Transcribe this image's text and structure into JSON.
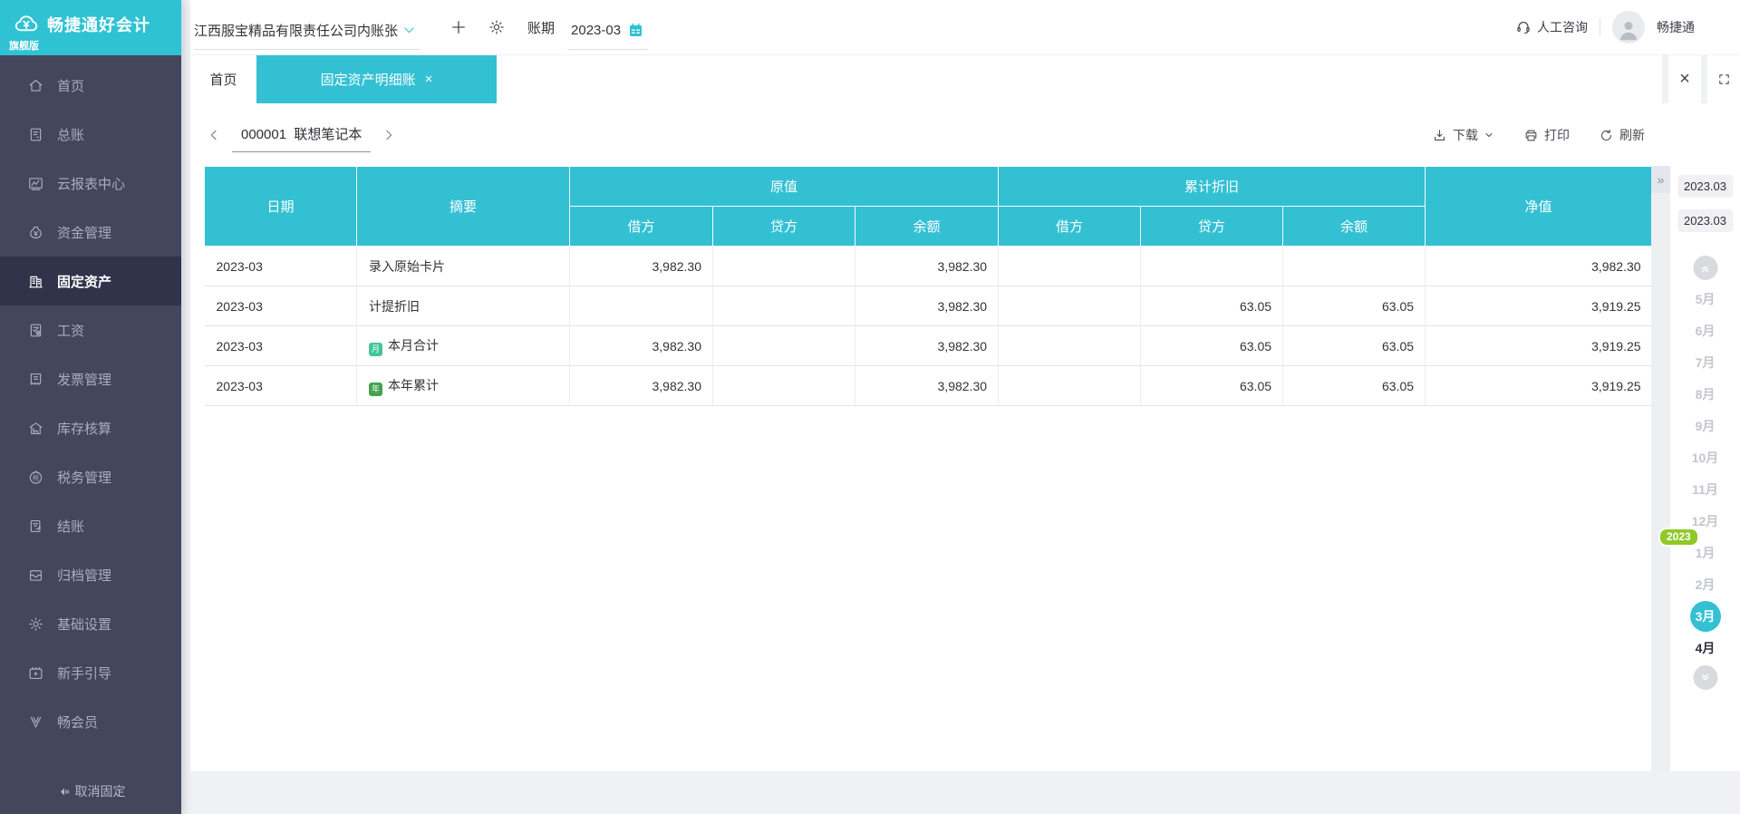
{
  "app": {
    "logo_title": "畅捷通好会计",
    "logo_badge": "旗舰版"
  },
  "topbar": {
    "company": "江西服宝精品有限责任公司内账张",
    "period_label": "账期",
    "period_value": "2023-03",
    "support": "人工咨询",
    "username": "畅捷通"
  },
  "tabs": {
    "home": "首页",
    "active": "固定资产明细账",
    "close_glyph": "×",
    "close_all_glyph": "×"
  },
  "toolbar": {
    "asset_no": "000001",
    "asset_name": "联想笔记本",
    "download": "下载",
    "print": "打印",
    "refresh": "刷新"
  },
  "table": {
    "headers": {
      "date": "日期",
      "summary": "摘要",
      "original_value": "原值",
      "accumulated_depreciation": "累计折旧",
      "net_value": "净值",
      "debit": "借方",
      "credit": "贷方",
      "balance": "余额"
    },
    "rows": [
      {
        "date": "2023-03",
        "summary": "录入原始卡片",
        "badge": "",
        "ov_debit": "3,982.30",
        "ov_credit": "",
        "ov_balance": "3,982.30",
        "dep_debit": "",
        "dep_credit": "",
        "dep_balance": "",
        "net": "3,982.30"
      },
      {
        "date": "2023-03",
        "summary": "计提折旧",
        "badge": "",
        "ov_debit": "",
        "ov_credit": "",
        "ov_balance": "3,982.30",
        "dep_debit": "",
        "dep_credit": "63.05",
        "dep_balance": "63.05",
        "net": "3,919.25"
      },
      {
        "date": "2023-03",
        "summary": "本月合计",
        "badge": "月",
        "ov_debit": "3,982.30",
        "ov_credit": "",
        "ov_balance": "3,982.30",
        "dep_debit": "",
        "dep_credit": "63.05",
        "dep_balance": "63.05",
        "net": "3,919.25"
      },
      {
        "date": "2023-03",
        "summary": "本年累计",
        "badge": "年",
        "ov_debit": "3,982.30",
        "ov_credit": "",
        "ov_balance": "3,982.30",
        "dep_debit": "",
        "dep_credit": "63.05",
        "dep_balance": "63.05",
        "net": "3,919.25"
      }
    ]
  },
  "sidebar": {
    "items": [
      {
        "label": "首页",
        "icon": "home"
      },
      {
        "label": "总账",
        "icon": "ledger"
      },
      {
        "label": "云报表中心",
        "icon": "cloud-report"
      },
      {
        "label": "资金管理",
        "icon": "funds"
      },
      {
        "label": "固定资产",
        "icon": "fixed-assets",
        "active": true
      },
      {
        "label": "工资",
        "icon": "salary"
      },
      {
        "label": "发票管理",
        "icon": "invoice"
      },
      {
        "label": "库存核算",
        "icon": "inventory"
      },
      {
        "label": "税务管理",
        "icon": "tax"
      },
      {
        "label": "结账",
        "icon": "closing"
      },
      {
        "label": "归档管理",
        "icon": "archive"
      },
      {
        "label": "基础设置",
        "icon": "settings"
      },
      {
        "label": "新手引导",
        "icon": "guide"
      },
      {
        "label": "畅会员",
        "icon": "member"
      }
    ],
    "unpin": "取消固定"
  },
  "period_panel": {
    "collapse_glyph": "»",
    "current_period": "2023.03",
    "selected_period": "2023.03",
    "year_badge": "2023",
    "months": [
      {
        "label": "5月",
        "state": "disabled"
      },
      {
        "label": "6月",
        "state": "disabled"
      },
      {
        "label": "7月",
        "state": "disabled"
      },
      {
        "label": "8月",
        "state": "disabled"
      },
      {
        "label": "9月",
        "state": "disabled"
      },
      {
        "label": "10月",
        "state": "disabled"
      },
      {
        "label": "11月",
        "state": "disabled"
      },
      {
        "label": "12月",
        "state": "disabled"
      },
      {
        "label": "1月",
        "state": "disabled"
      },
      {
        "label": "2月",
        "state": "disabled"
      },
      {
        "label": "3月",
        "state": "active"
      },
      {
        "label": "4月",
        "state": "normal"
      }
    ]
  },
  "colors": {
    "accent_teal": "#33c0d3",
    "sidebar_bg": "#43465c",
    "sidebar_active_bg": "#31334a",
    "panel_year_green": "#8fc929",
    "month_summary_icon": "#45c598",
    "year_summary_icon": "#43a34f"
  }
}
